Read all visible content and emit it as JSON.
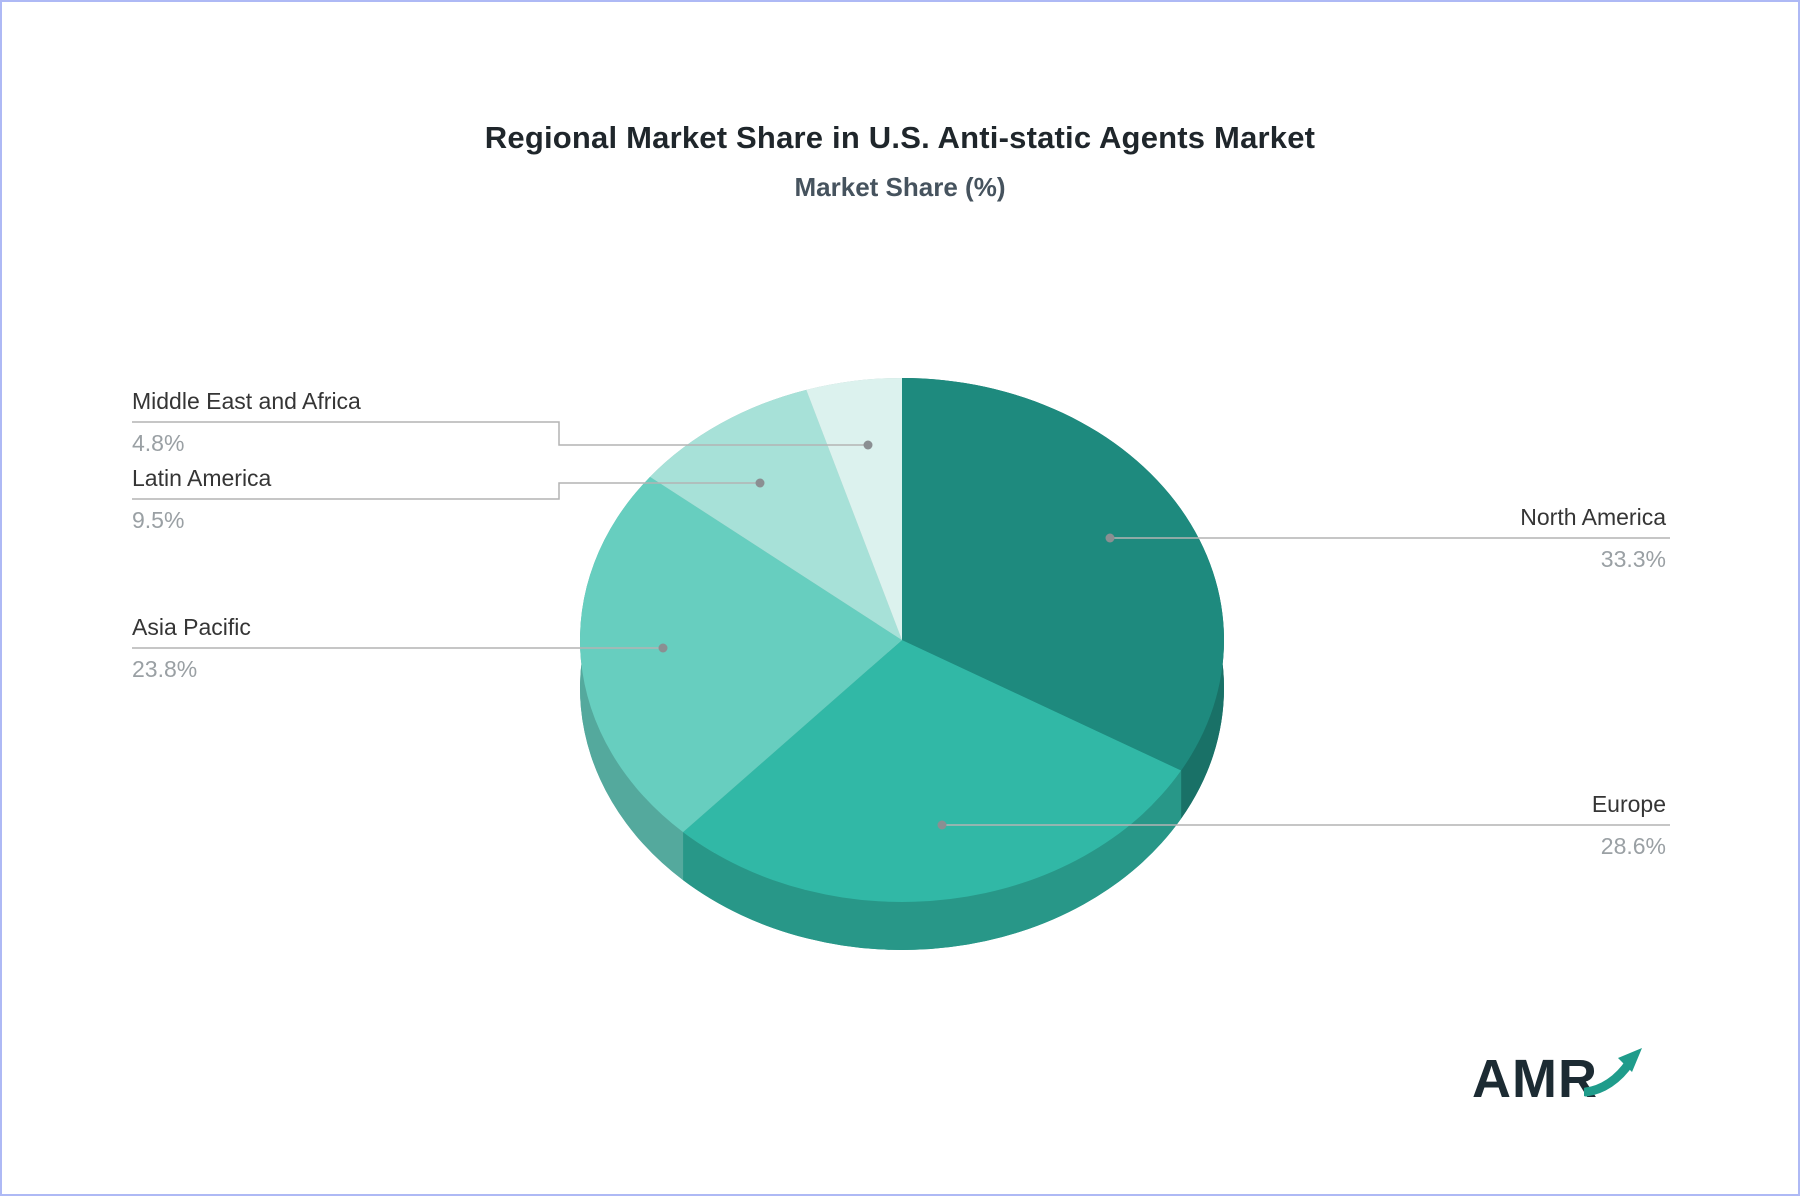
{
  "page": {
    "title": "Regional Market Share in U.S. Anti-static Agents Market",
    "subtitle": "Market Share (%)"
  },
  "logo": {
    "text": "AMR"
  },
  "chart_data": {
    "type": "pie",
    "title": "Regional Market Share in U.S. Anti-static Agents Market",
    "subtitle": "Market Share (%)",
    "unit": "%",
    "categories": [
      "North America",
      "Europe",
      "Asia Pacific",
      "Latin America",
      "Middle East and Africa"
    ],
    "values": [
      33.3,
      28.6,
      23.8,
      9.5,
      4.8
    ],
    "colors": [
      "#1e8a7e",
      "#31b8a6",
      "#67cebf",
      "#a7e1d8",
      "#dcf2ee"
    ],
    "start_angle_deg": -90,
    "direction": "clockwise",
    "effect": "3d-depth",
    "legend_position": "none",
    "callouts": [
      {
        "name": "North America",
        "pct": "33.3%"
      },
      {
        "name": "Europe",
        "pct": "28.6%"
      },
      {
        "name": "Asia Pacific",
        "pct": "23.8%"
      },
      {
        "name": "Latin America",
        "pct": "9.5%"
      },
      {
        "name": "Middle East and Africa",
        "pct": "4.8%"
      }
    ]
  }
}
